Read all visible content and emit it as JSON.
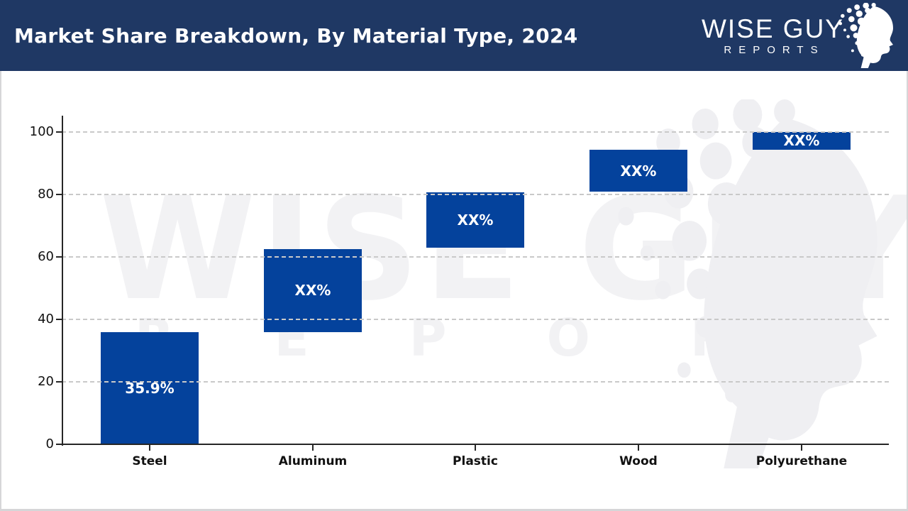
{
  "header": {
    "title": "Market Share Breakdown, By Material Type, 2024",
    "bg_color": "#1f3864",
    "logo": {
      "line1": "WISE GUY",
      "line2": "REPORTS"
    }
  },
  "watermark": {
    "line1": "WISE GUY",
    "line2": "R E P O R T S"
  },
  "chart_data": {
    "type": "bar",
    "variant": "waterfall",
    "title": "Market Share Breakdown, By Material Type, 2024",
    "categories": [
      "Steel",
      "Aluminum",
      "Plastic",
      "Wood",
      "Polyurethane"
    ],
    "segments": [
      {
        "category": "Steel",
        "start": 0,
        "end": 35.9,
        "label": "35.9%"
      },
      {
        "category": "Aluminum",
        "start": 35.9,
        "end": 62.6,
        "label": "XX%"
      },
      {
        "category": "Plastic",
        "start": 62.9,
        "end": 80.7,
        "label": "XX%"
      },
      {
        "category": "Wood",
        "start": 80.9,
        "end": 94.3,
        "label": "XX%"
      },
      {
        "category": "Polyurethane",
        "start": 94.4,
        "end": 100,
        "label": "XX%"
      }
    ],
    "y_ticks": [
      0,
      20,
      40,
      60,
      80,
      100
    ],
    "ylim": [
      0,
      105
    ],
    "xlabel": "",
    "ylabel": "",
    "grid": "horizontal-dashed",
    "legend": "none",
    "bar_color": "#04429c",
    "label_color": "#ffffff",
    "axis_color": "#262626",
    "grid_color": "#c9c9c9"
  }
}
